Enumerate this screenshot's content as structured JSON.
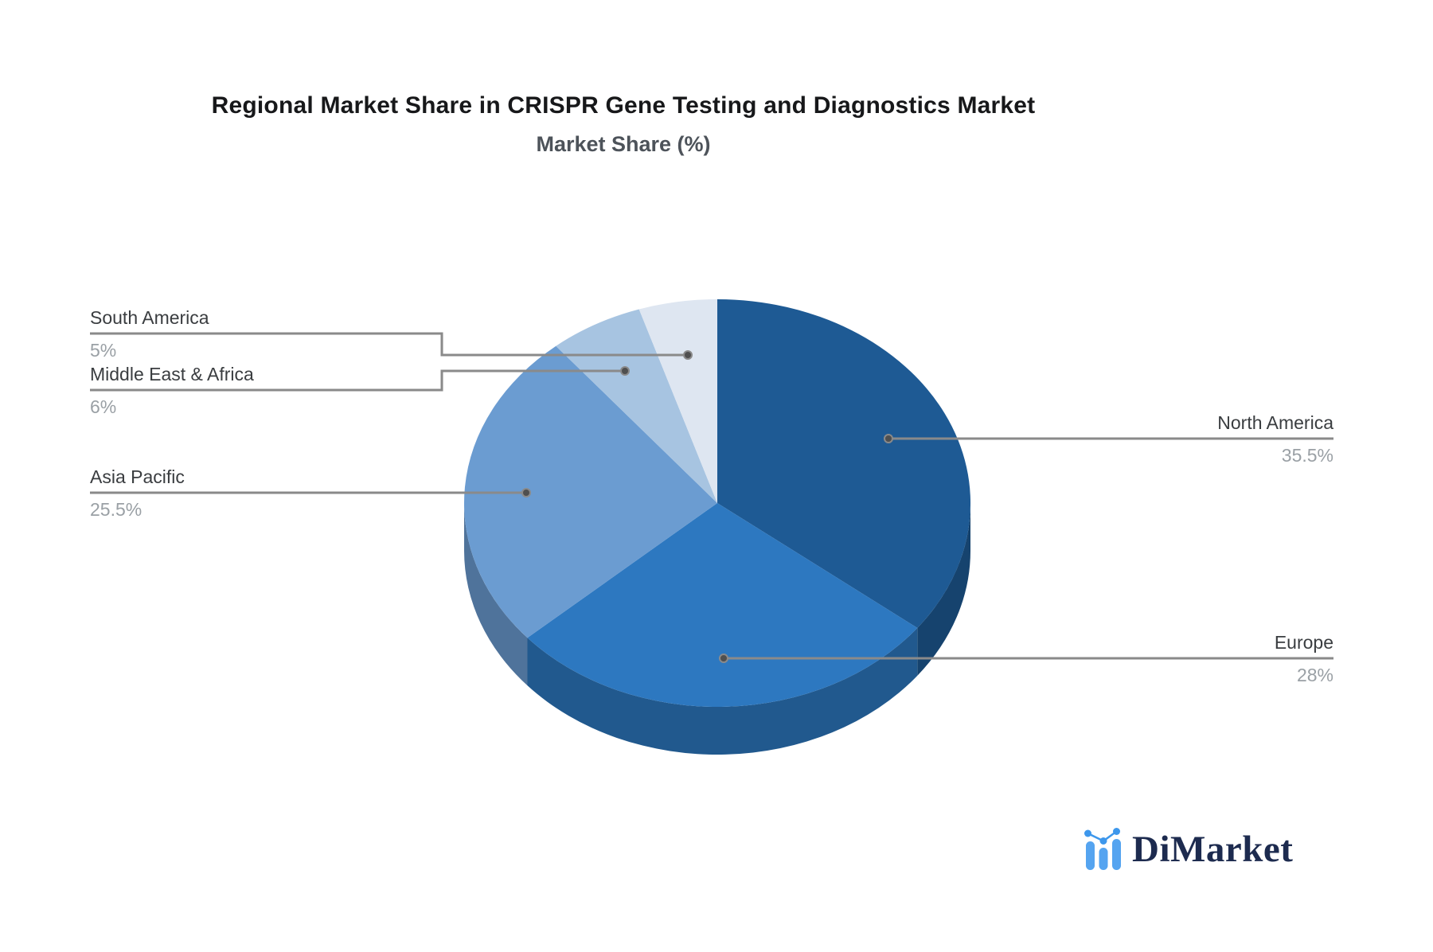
{
  "chart_data": {
    "type": "pie",
    "title": "Regional Market Share in CRISPR Gene Testing and Diagnostics Market",
    "subtitle": "Market Share (%)",
    "unit": "%",
    "effect": "3d",
    "start_angle_deg": 90,
    "direction": "clockwise",
    "legend_position": "none",
    "slices": [
      {
        "label": "North America",
        "value": 35.5,
        "display": "35.5%",
        "color": "#1E5A94"
      },
      {
        "label": "Europe",
        "value": 28,
        "display": "28%",
        "color": "#2D78C0"
      },
      {
        "label": "Asia Pacific",
        "value": 25.5,
        "display": "25.5%",
        "color": "#6B9CD1"
      },
      {
        "label": "Middle East & Africa",
        "value": 6,
        "display": "6%",
        "color": "#A7C4E1"
      },
      {
        "label": "South America",
        "value": 5,
        "display": "5%",
        "color": "#DEE6F1"
      }
    ],
    "callout_line_color": "#8a8a8a",
    "callout_dot_color": "#4f4f4f",
    "label_color": "#3a3d40",
    "value_color": "#9aa0a5"
  },
  "branding": {
    "logo_text": "DiMarket",
    "logo_icon": "bar-chart-logo-icon",
    "icon_bar_color": "#55a4f0",
    "icon_dot_color": "#3d97ec",
    "text_color": "#1d2b4f"
  }
}
